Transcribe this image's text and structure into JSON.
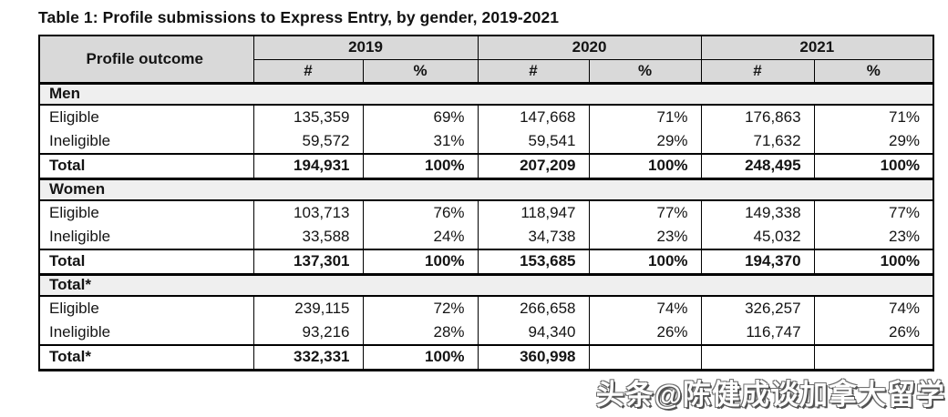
{
  "title": "Table 1: Profile submissions to Express Entry, by gender, 2019-2021",
  "watermark": "头条@陈健成谈加拿大留学",
  "table": {
    "outcome_header": "Profile outcome",
    "years": [
      "2019",
      "2020",
      "2021"
    ],
    "sub": {
      "count": "#",
      "percent": "%"
    },
    "sections": [
      {
        "name": "Men",
        "rows": [
          {
            "label": "Eligible",
            "values": [
              "135,359",
              "69%",
              "147,668",
              "71%",
              "176,863",
              "71%"
            ]
          },
          {
            "label": "Ineligible",
            "values": [
              "59,572",
              "31%",
              "59,541",
              "29%",
              "71,632",
              "29%"
            ]
          },
          {
            "label": "Total",
            "values": [
              "194,931",
              "100%",
              "207,209",
              "100%",
              "248,495",
              "100%"
            ]
          }
        ]
      },
      {
        "name": "Women",
        "rows": [
          {
            "label": "Eligible",
            "values": [
              "103,713",
              "76%",
              "118,947",
              "77%",
              "149,338",
              "77%"
            ]
          },
          {
            "label": "Ineligible",
            "values": [
              "33,588",
              "24%",
              "34,738",
              "23%",
              "45,032",
              "23%"
            ]
          },
          {
            "label": "Total",
            "values": [
              "137,301",
              "100%",
              "153,685",
              "100%",
              "194,370",
              "100%"
            ]
          }
        ]
      },
      {
        "name": "Total*",
        "rows": [
          {
            "label": "Eligible",
            "values": [
              "239,115",
              "72%",
              "266,658",
              "74%",
              "326,257",
              "74%"
            ]
          },
          {
            "label": "Ineligible",
            "values": [
              "93,216",
              "28%",
              "94,340",
              "26%",
              "116,747",
              "26%"
            ]
          },
          {
            "label": "Total*",
            "values": [
              "332,331",
              "100%",
              "360,998",
              "",
              "",
              ""
            ]
          }
        ]
      }
    ]
  },
  "colors": {
    "header_fill": "#d9d9d9",
    "section_fill": "#efefef",
    "border": "#000000",
    "watermark_text": "#ffffff"
  }
}
